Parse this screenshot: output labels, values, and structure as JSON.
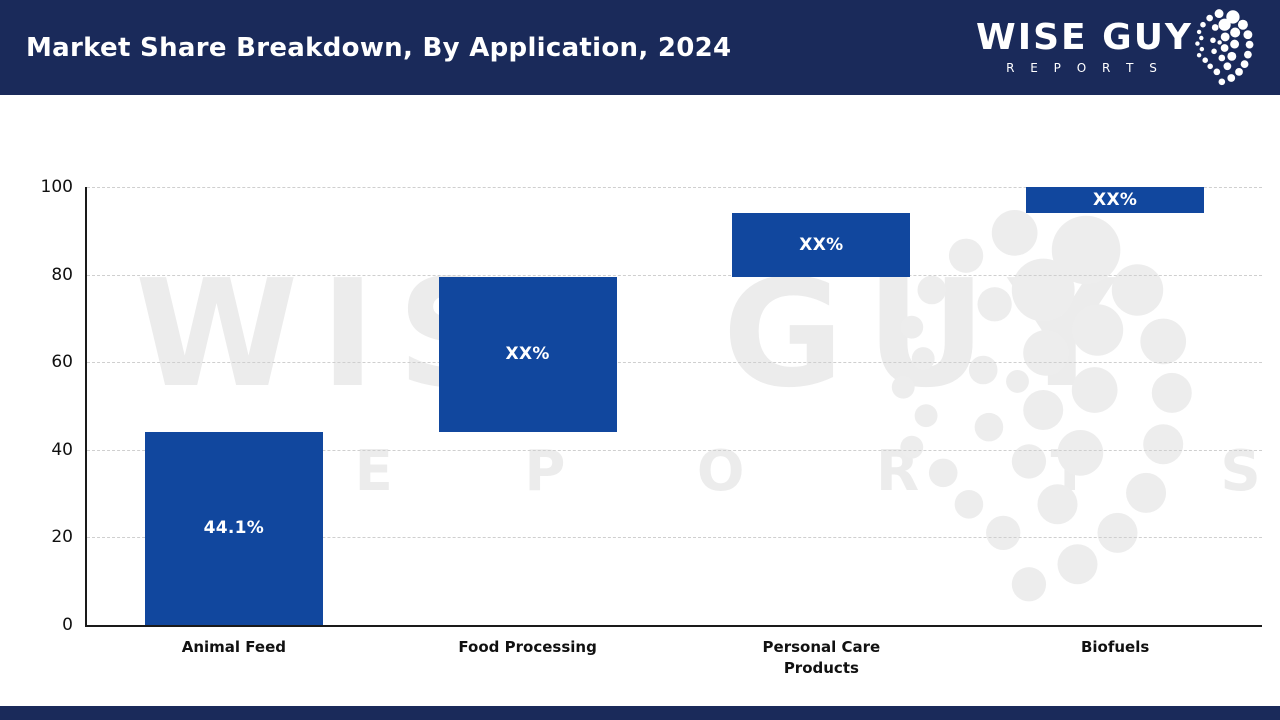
{
  "header": {
    "title": "Market Share Breakdown, By Application, 2024",
    "logo": {
      "wordmark": "WISE GUY",
      "subtitle": "R E P O R T S"
    }
  },
  "watermark": {
    "line1": "WISE GUY",
    "line2": "R E P O R T S"
  },
  "chart_data": {
    "type": "bar",
    "subtype": "waterfall",
    "title": "Market Share Breakdown, By Application, 2024",
    "categories": [
      "Animal Feed",
      "Food Processing",
      "Personal Care Products",
      "Biofuels"
    ],
    "segments": [
      {
        "category": "Animal Feed",
        "start": 0,
        "end": 44.1,
        "label": "44.1%"
      },
      {
        "category": "Food Processing",
        "start": 44.1,
        "end": 79.5,
        "label": "XX%"
      },
      {
        "category": "Personal Care Products",
        "start": 79.5,
        "end": 94,
        "label": "XX%"
      },
      {
        "category": "Biofuels",
        "start": 94,
        "end": 100,
        "label": "XX%"
      }
    ],
    "xlabel": "",
    "ylabel": "",
    "ylim": [
      0,
      100
    ],
    "yticks": [
      0,
      20,
      40,
      60,
      80,
      100
    ],
    "grid": true,
    "grid_style": "dashed",
    "legend": null,
    "bar_color": "#11479e",
    "bar_label_color": "#ffffff"
  },
  "colors": {
    "header_bg": "#1a2a5a",
    "footer_bg": "#1a2a5a",
    "bar": "#11479e",
    "watermark": "#ececec",
    "axis": "#1a1a1a",
    "background": "#ffffff"
  }
}
